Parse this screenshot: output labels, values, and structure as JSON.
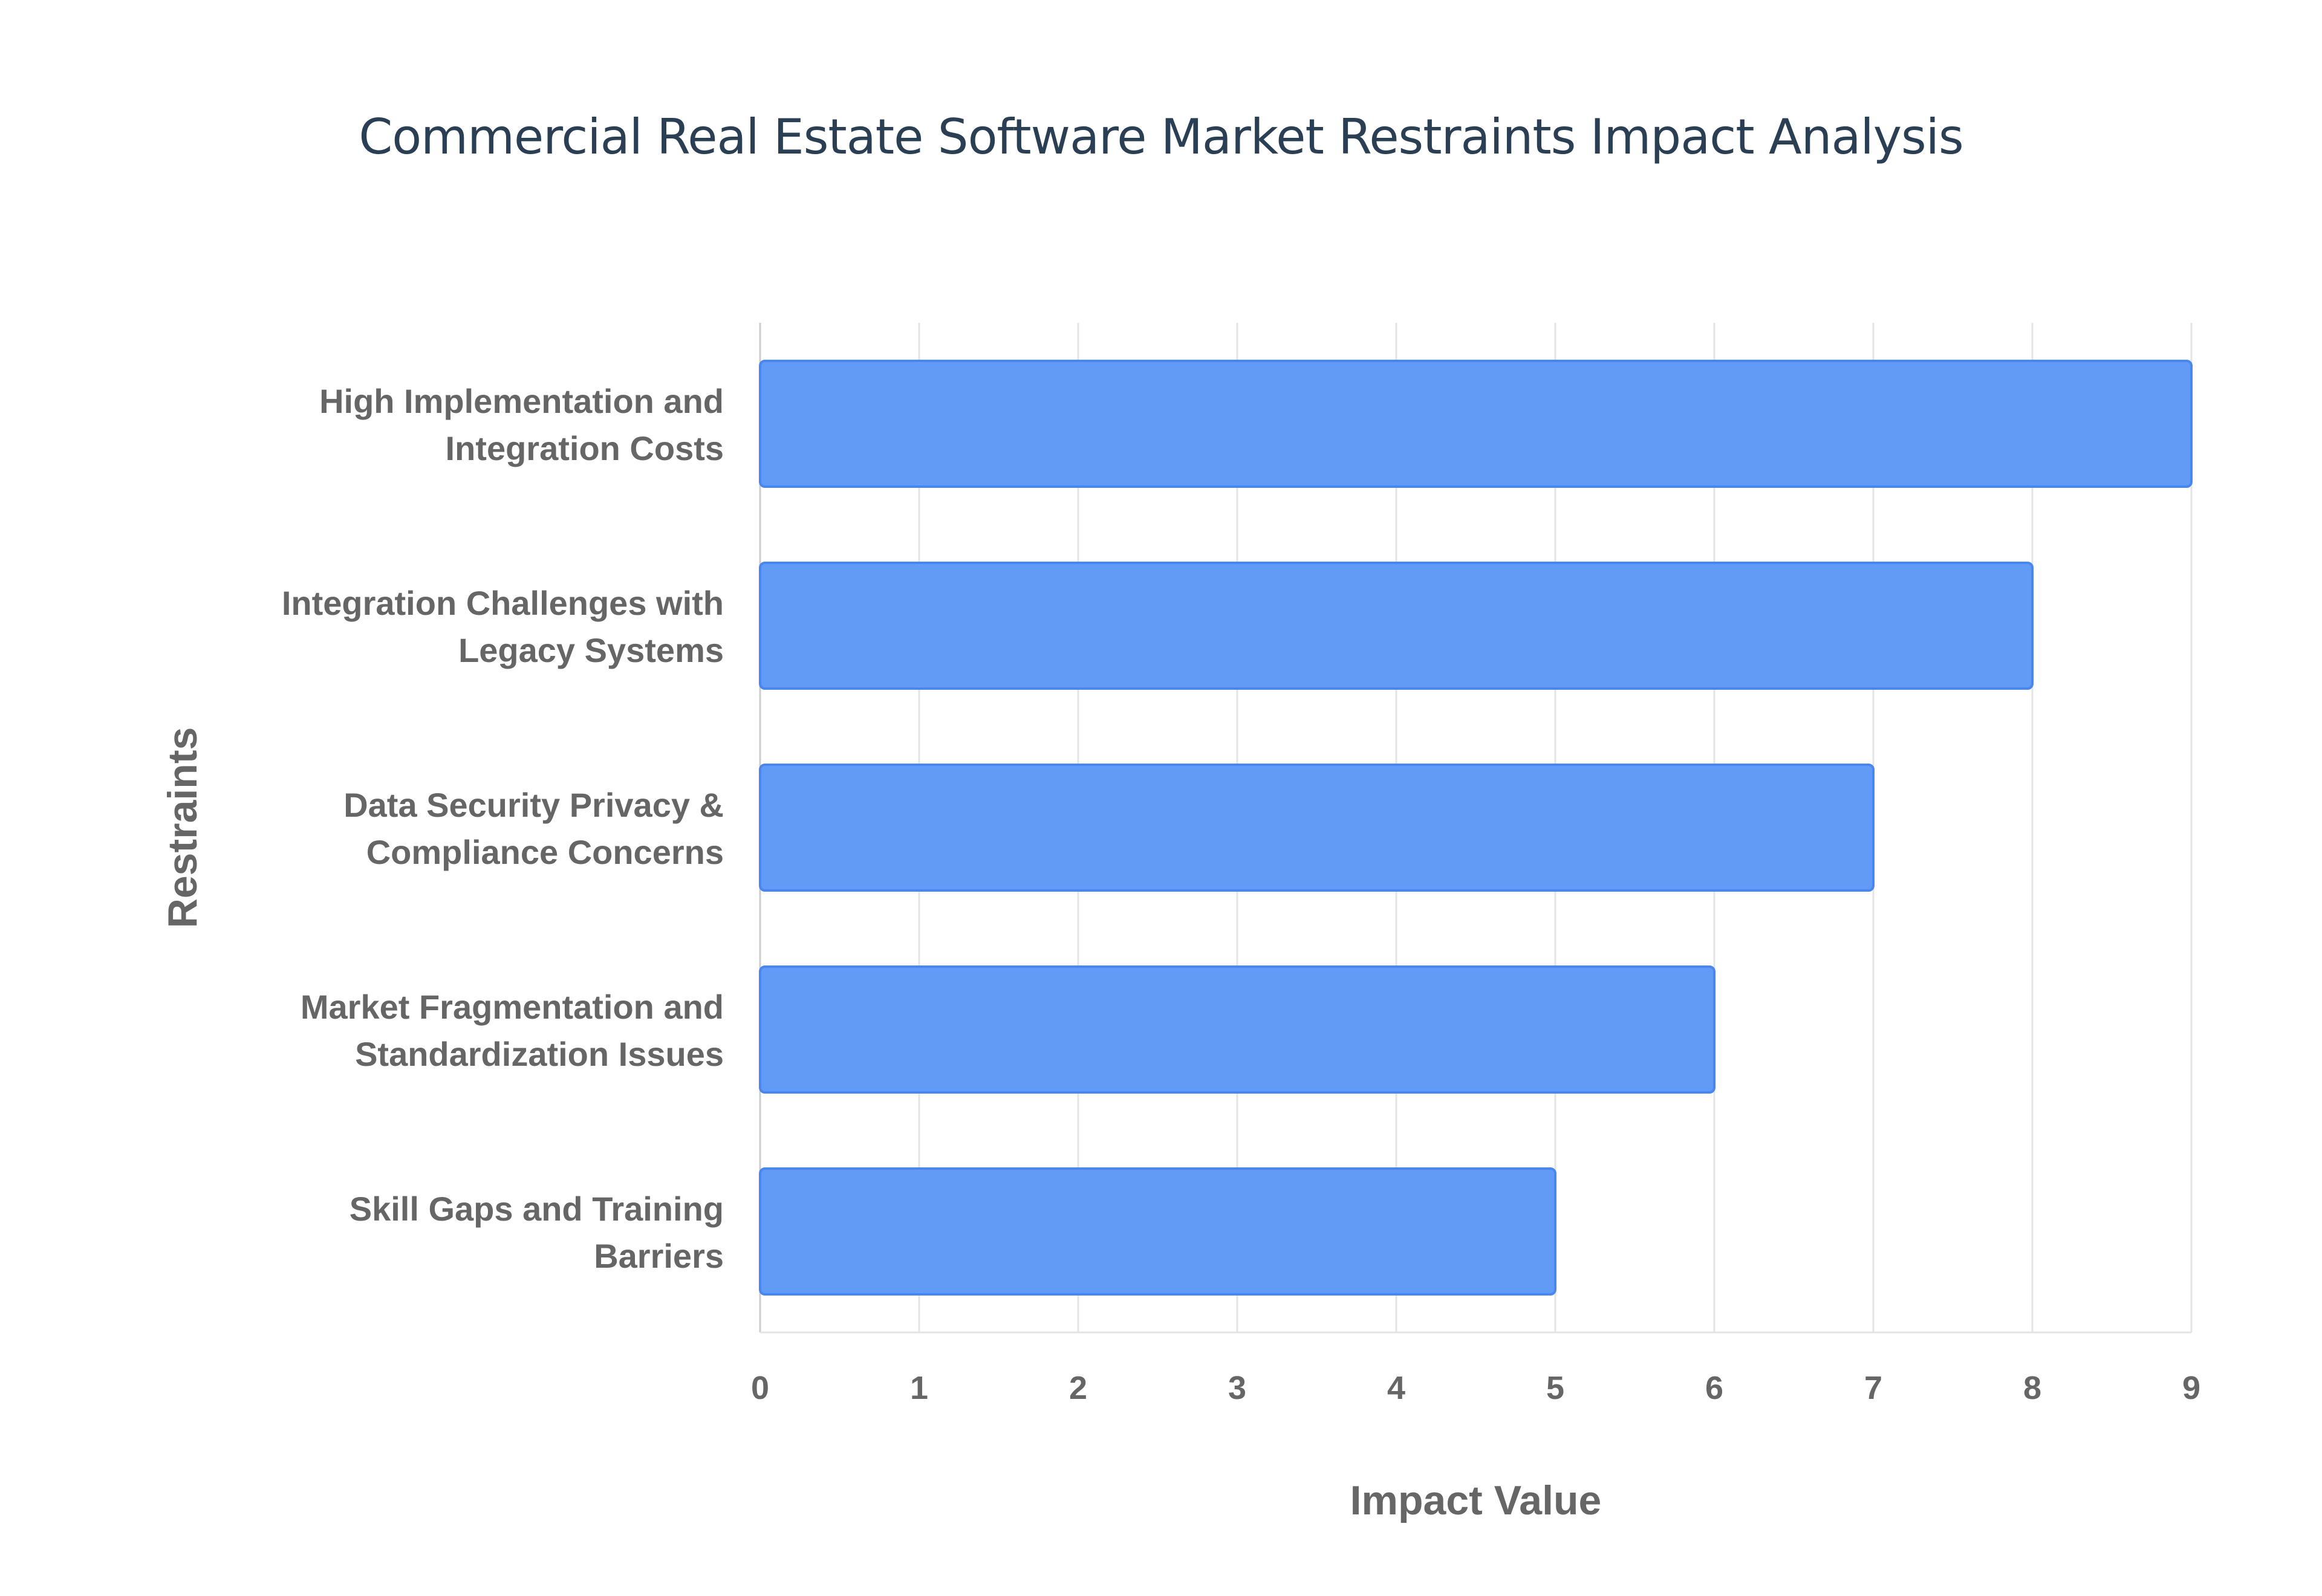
{
  "chart_data": {
    "type": "bar",
    "orientation": "horizontal",
    "title": "Commercial Real Estate Software Market Restraints Impact Analysis",
    "xlabel": "Impact Value",
    "ylabel": "Restraints",
    "categories": [
      [
        "High Implementation and",
        "Integration Costs"
      ],
      [
        "Integration Challenges with",
        "Legacy Systems"
      ],
      [
        "Data Security Privacy &",
        "Compliance Concerns"
      ],
      [
        "Market Fragmentation and",
        "Standardization Issues"
      ],
      [
        "Skill Gaps and Training",
        "Barriers"
      ]
    ],
    "values": [
      9,
      8,
      7,
      6,
      5
    ],
    "xlim": [
      0,
      9
    ],
    "xticks": [
      "0",
      "1",
      "2",
      "3",
      "4",
      "5",
      "6",
      "7",
      "8",
      "9"
    ],
    "grid": true,
    "colors": {
      "bar": "#619bf5",
      "bar_border": "#4a86f0",
      "grid": "#e4e4e4",
      "text": "#666666",
      "title": "#2a3f54"
    }
  }
}
